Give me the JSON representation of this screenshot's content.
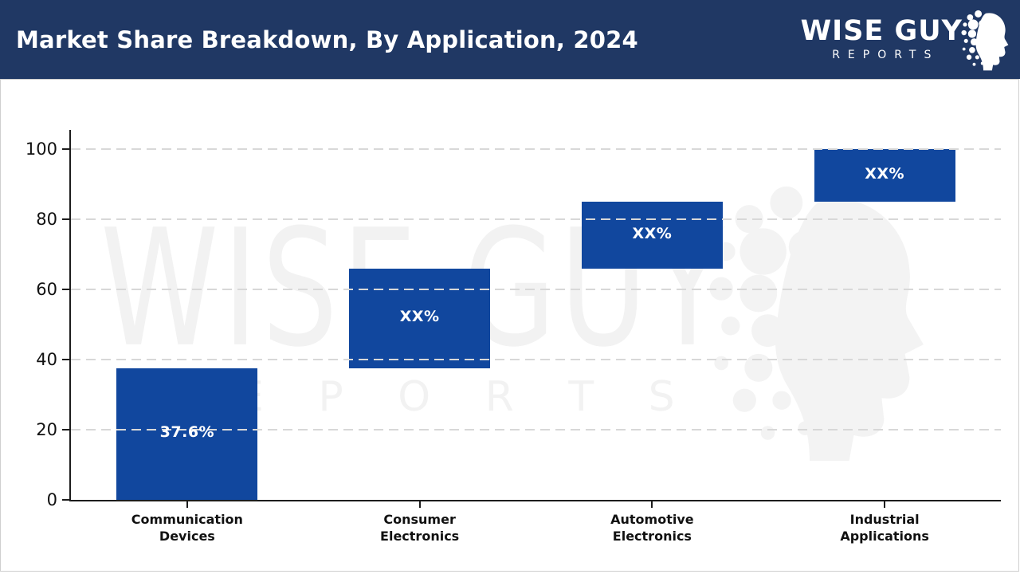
{
  "header": {
    "title": "Market Share Breakdown, By Application, 2024",
    "logo": {
      "line1": "WISE GUY",
      "line2": "REPORTS"
    }
  },
  "watermark": {
    "line1": "WISE GUY",
    "line2": "R E P O R T S"
  },
  "chart_data": {
    "type": "bar",
    "subtype": "waterfall-floating-bars",
    "title": "Market Share Breakdown, By Application, 2024",
    "xlabel": "",
    "ylabel": "",
    "ylim": [
      0,
      100
    ],
    "yticks": [
      0,
      20,
      40,
      60,
      80,
      100
    ],
    "grid": "horizontal-dashed",
    "gridline_color": "#d8d8d8",
    "axis_color": "#1c1c1c",
    "bar_color": "#11479e",
    "bar_label_color": "#ffffff",
    "header_color": "#203864",
    "legend": "none",
    "categories": [
      {
        "label": "Communication Devices",
        "lines": [
          "Communication",
          "Devices"
        ]
      },
      {
        "label": "Consumer Electronics",
        "lines": [
          "Consumer",
          "Electronics"
        ]
      },
      {
        "label": "Automotive Electronics",
        "lines": [
          "Automotive",
          "Electronics"
        ]
      },
      {
        "label": "Industrial Applications",
        "lines": [
          "Industrial",
          "Applications"
        ]
      }
    ],
    "segments": [
      {
        "category": "Communication Devices",
        "start": 0,
        "end": 37.6,
        "value": 37.6,
        "label": "37.6%"
      },
      {
        "category": "Consumer Electronics",
        "start": 37.6,
        "end": 66,
        "value": 28.4,
        "label": "XX%"
      },
      {
        "category": "Automotive Electronics",
        "start": 66,
        "end": 85,
        "value": 19,
        "label": "XX%"
      },
      {
        "category": "Industrial Applications",
        "start": 85,
        "end": 100,
        "value": 15,
        "label": "XX%"
      }
    ]
  }
}
